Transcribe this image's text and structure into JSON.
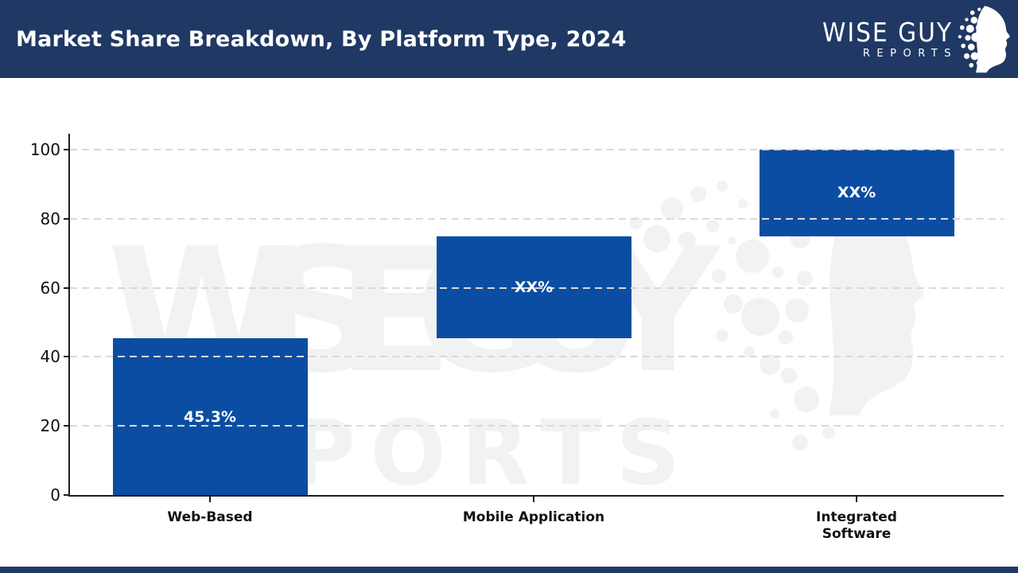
{
  "header": {
    "title": "Market Share Breakdown, By Platform Type, 2024",
    "logo_line1": "WISE GUY",
    "logo_line2": "REPORTS"
  },
  "watermark": {
    "line1": "WISE GUY",
    "line2": "REPORTS"
  },
  "chart_data": {
    "type": "bar",
    "variant": "floating-waterfall",
    "title": "Market Share Breakdown, By Platform Type, 2024",
    "categories": [
      "Web-Based",
      "Mobile Application",
      "Integrated\nSoftware"
    ],
    "bars": [
      {
        "category": "Web-Based",
        "start": 0,
        "end": 45.3,
        "label": "45.3%"
      },
      {
        "category": "Mobile Application",
        "start": 45.3,
        "end": 75,
        "label": "XX%"
      },
      {
        "category": "Integrated Software",
        "start": 75,
        "end": 100,
        "label": "XX%"
      }
    ],
    "xlabel": "",
    "ylabel": "",
    "ylim": [
      0,
      100
    ],
    "yticks": [
      0,
      20,
      40,
      60,
      80,
      100
    ],
    "grid": "horizontal-dashed",
    "legend": "none",
    "bar_color": "#0b4da2",
    "label_color": "#ffffff"
  },
  "colors": {
    "header_bg": "#203864",
    "footer_bg": "#203864",
    "bar": "#0b4da2",
    "grid": "#d9d9d9",
    "axis": "#1c1c1c",
    "text": "#111111",
    "watermark": "#f2f2f2"
  }
}
